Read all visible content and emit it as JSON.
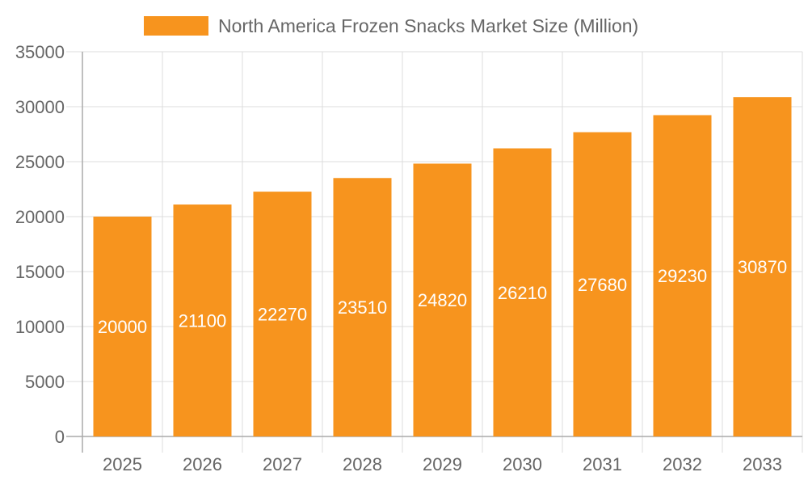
{
  "chart_data": {
    "type": "bar",
    "title": "",
    "xlabel": "",
    "ylabel": "",
    "categories": [
      "2025",
      "2026",
      "2027",
      "2028",
      "2029",
      "2030",
      "2031",
      "2032",
      "2033"
    ],
    "series": [
      {
        "name": "North America Frozen Snacks Market Size (Million)",
        "values": [
          20000,
          21100,
          22270,
          23510,
          24820,
          26210,
          27680,
          29230,
          30870
        ],
        "color": "#F7941E"
      }
    ],
    "ylim": [
      0,
      35000
    ],
    "yticks": [
      "0",
      "5000",
      "10000",
      "15000",
      "20000",
      "25000",
      "30000",
      "35000"
    ],
    "grid": true,
    "legend": "top-center",
    "data_labels": true
  }
}
